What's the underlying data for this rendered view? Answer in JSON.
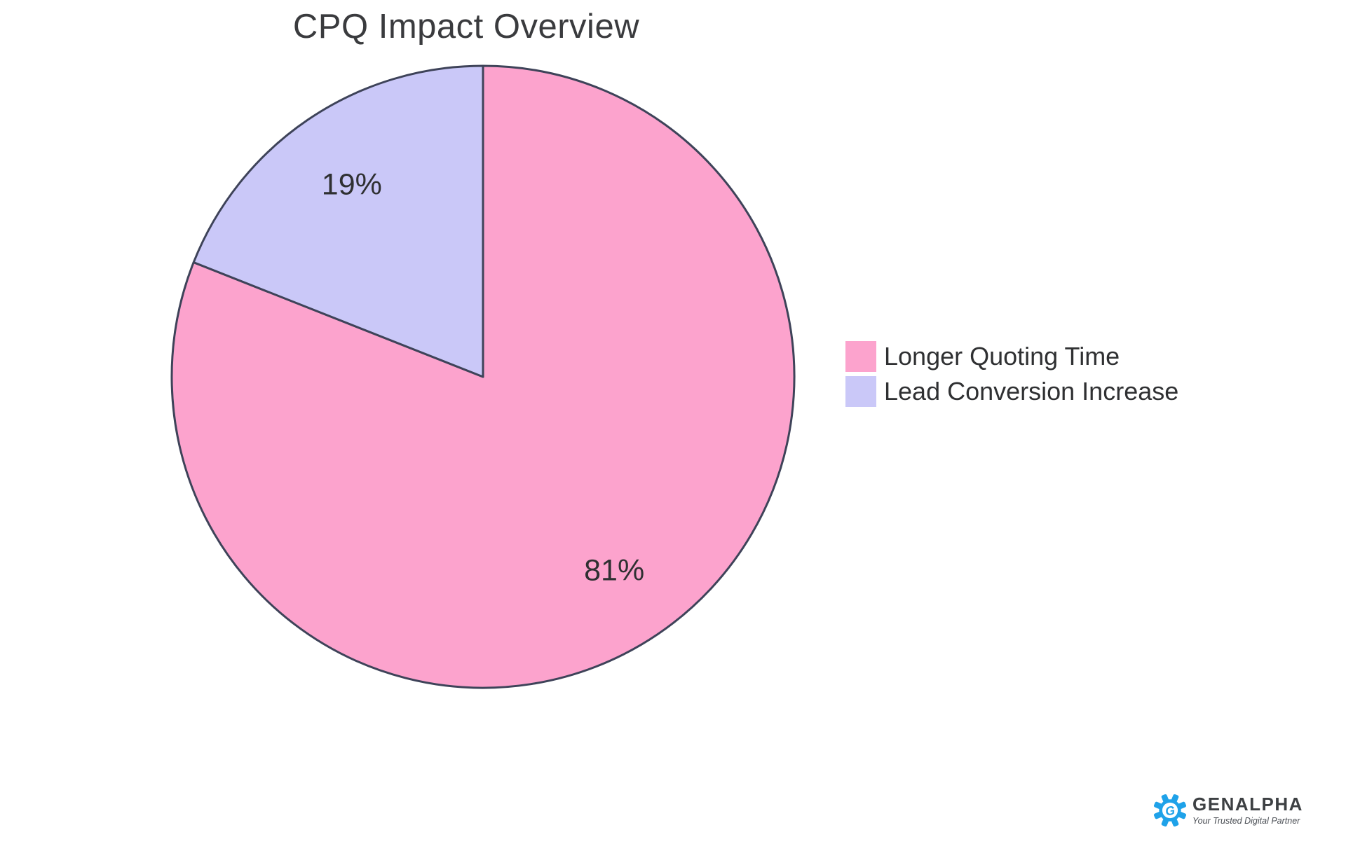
{
  "chart_data": {
    "type": "pie",
    "title": "CPQ Impact Overview",
    "labels": [
      "Longer Quoting Time",
      "Lead Conversion Increase"
    ],
    "values": [
      81,
      19
    ],
    "percent_labels": [
      "81%",
      "19%"
    ],
    "colors": [
      "#FCA3CD",
      "#CAC8F8"
    ],
    "start_angle": "12-o'clock",
    "direction": "clockwise",
    "slice_border_color": "#3E4359",
    "slice_border_width": 3,
    "label_color": "#2f3032",
    "label_radius_factor": 0.75,
    "legend_position": "right"
  },
  "branding": {
    "name": "GENALPHA",
    "tagline": "Your Trusted Digital Partner",
    "logo_color": "#1FA2E9",
    "icon": "gear-icon"
  }
}
